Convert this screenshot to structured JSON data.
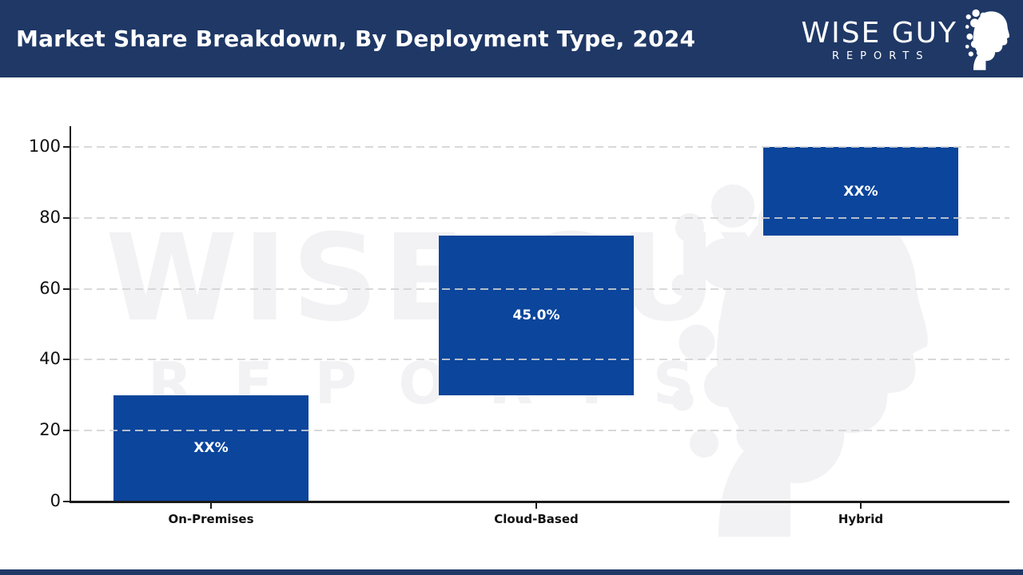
{
  "header": {
    "title": "Market Share Breakdown, By Deployment Type, 2024",
    "bg_color": "#1f3866",
    "logo": {
      "line1": "WISE GUY",
      "line2": "REPORTS"
    }
  },
  "watermark": {
    "line1": "WISE GUY",
    "line2": "REPORTS"
  },
  "chart_data": {
    "type": "bar",
    "subtype": "waterfall",
    "title": "Market Share Breakdown, By Deployment Type, 2024",
    "categories": [
      "On-Premises",
      "Cloud-Based",
      "Hybrid"
    ],
    "segments": [
      {
        "category": "On-Premises",
        "start": 0,
        "end": 30,
        "label": "XX%"
      },
      {
        "category": "Cloud-Based",
        "start": 30,
        "end": 75,
        "label": "45.0%"
      },
      {
        "category": "Hybrid",
        "start": 75,
        "end": 100,
        "label": "XX%"
      }
    ],
    "ylim": [
      0,
      100
    ],
    "yticks": [
      0,
      20,
      40,
      60,
      80,
      100
    ],
    "xlabel": "",
    "ylabel": "",
    "bar_color": "#0b459c",
    "grid": true,
    "grid_style": "dashed",
    "grid_over_bars": true,
    "legend": "none"
  },
  "footer": {
    "bar_color": "#1f3866"
  }
}
